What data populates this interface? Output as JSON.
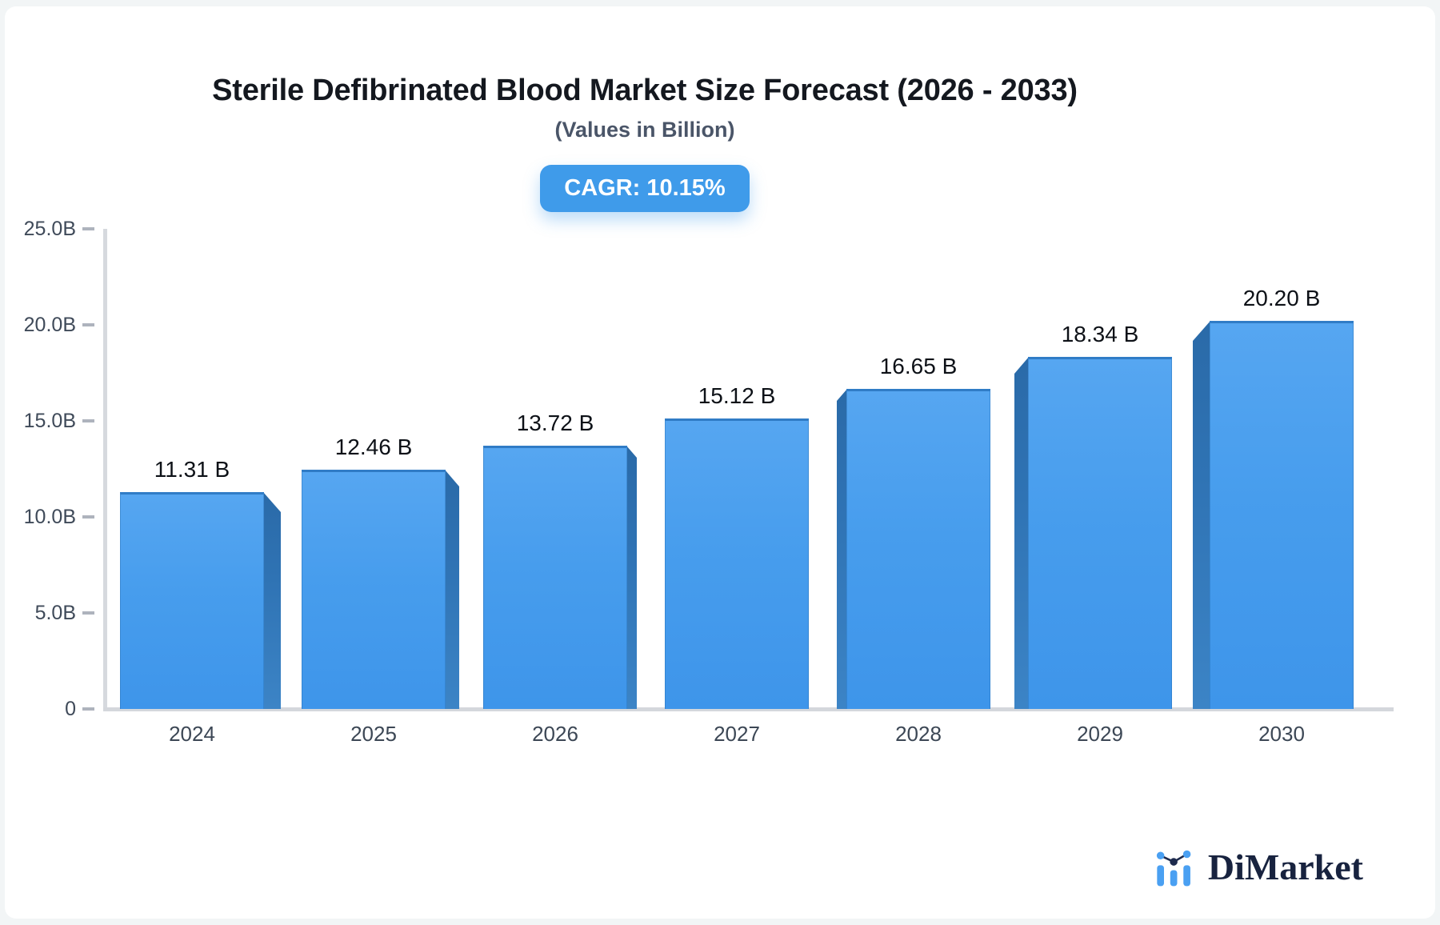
{
  "page": {
    "background_color": "#f2f5f6",
    "card_background_color": "#ffffff"
  },
  "header": {
    "title": "Sterile Defibrinated Blood Market Size Forecast (2026 - 2033)",
    "subtitle": "(Values in Billion)",
    "cagr_badge": "CAGR: 10.15%",
    "badge_color": "#3f9bea"
  },
  "chart_data": {
    "type": "bar",
    "title": "Sterile Defibrinated Blood Market Size Forecast (2026 - 2033)",
    "subtitle": "(Values in Billion)",
    "cagr": "10.15%",
    "categories": [
      "2024",
      "2025",
      "2026",
      "2027",
      "2028",
      "2029",
      "2030"
    ],
    "values": [
      11.31,
      12.46,
      13.72,
      15.12,
      16.65,
      18.34,
      20.2
    ],
    "bar_labels": [
      "11.31 B",
      "12.46 B",
      "13.72 B",
      "15.12 B",
      "16.65 B",
      "18.34 B",
      "20.20 B"
    ],
    "xlabel": "",
    "ylabel": "",
    "ylim": [
      0,
      25
    ],
    "ytick_labels": [
      "25.0B",
      "20.0B",
      "15.0B",
      "10.0B",
      "5.0B",
      "0"
    ],
    "grid": "off",
    "legend": "none",
    "bar_color": "#479ded",
    "bar_side_color": "#2f73b4",
    "bar_style": "3d-extruded, side faces angled toward center"
  },
  "logo": {
    "text": "DiMarket",
    "icon": "bar-chart-trend-icon",
    "icon_bar_color": "#4aa0f2",
    "text_color": "#18233f"
  }
}
